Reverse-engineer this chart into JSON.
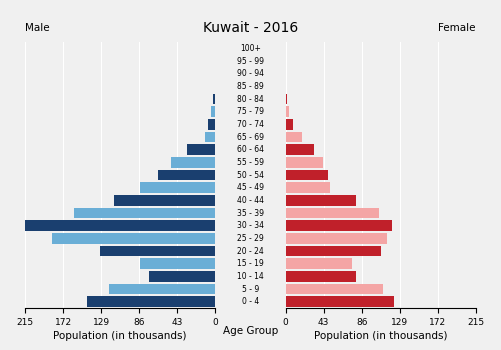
{
  "title": "Kuwait - 2016",
  "age_groups": [
    "0 - 4",
    "5 - 9",
    "10 - 14",
    "15 - 19",
    "20 - 24",
    "25 - 29",
    "30 - 34",
    "35 - 39",
    "40 - 44",
    "45 - 49",
    "50 - 54",
    "55 - 59",
    "60 - 64",
    "65 - 69",
    "70 - 74",
    "75 - 79",
    "80 - 84",
    "85 - 89",
    "90 - 94",
    "95 - 99",
    "100+"
  ],
  "male": [
    145,
    120,
    75,
    85,
    130,
    185,
    215,
    160,
    115,
    85,
    65,
    50,
    32,
    12,
    8.5,
    4.5,
    2.5,
    0.8,
    0.5,
    0.4,
    0.3
  ],
  "female": [
    122,
    110,
    80,
    75,
    108,
    115,
    120,
    105,
    80,
    50,
    48,
    42,
    32,
    18,
    8.0,
    3.5,
    2.0,
    0.5,
    0.4,
    0.3,
    0.2
  ],
  "xlim": 215,
  "xlabel_left": "Population (in thousands)",
  "xlabel_center": "Age Group",
  "xlabel_right": "Population (in thousands)",
  "label_male": "Male",
  "label_female": "Female",
  "bg_color": "#f0f0f0",
  "male_dark": "#1a3f6f",
  "male_light": "#6aaed6",
  "female_dark": "#c0202a",
  "female_light": "#f4a5a5",
  "title_fontsize": 10,
  "label_fontsize": 7.5,
  "tick_fontsize": 6.5,
  "age_fontsize": 5.5
}
